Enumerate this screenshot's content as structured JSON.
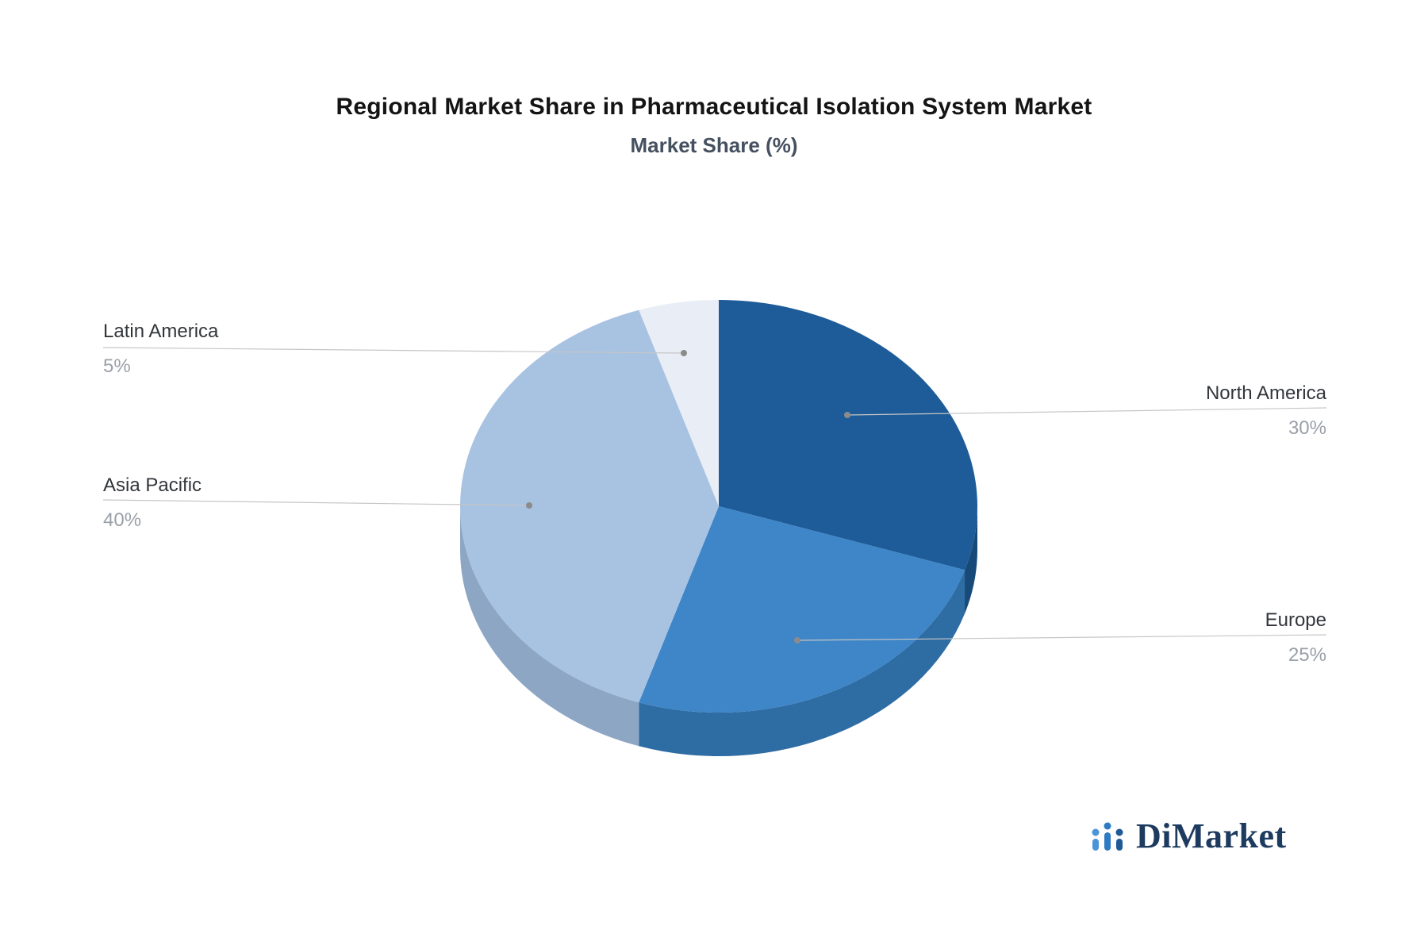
{
  "chart_data": {
    "type": "pie",
    "title": "Regional Market Share in Pharmaceutical Isolation System Market",
    "subtitle": "Market Share (%)",
    "unit": "%",
    "slices": [
      {
        "label": "North America",
        "value": 30,
        "value_label": "30%",
        "color": "#1E5C99",
        "side_color": "#174A78"
      },
      {
        "label": "Europe",
        "value": 25,
        "value_label": "25%",
        "color": "#3E86C8",
        "side_color": "#2E6CA4"
      },
      {
        "label": "Asia Pacific",
        "value": 40,
        "value_label": "40%",
        "color": "#A8C2E1",
        "side_color": "#8CA6C4"
      },
      {
        "label": "Latin America",
        "value": 5,
        "value_label": "5%",
        "color": "#E8EDF6",
        "side_color": "#C6CFDF"
      }
    ],
    "layout": {
      "effect": "3d-pie",
      "start_angle_deg": 0,
      "clockwise": true,
      "legend": "none",
      "labels": "callout-lines",
      "leader_line_color": "#C6C6C6",
      "leader_dot_color": "#8B8B8B"
    }
  },
  "branding": {
    "logo_text": "DiMarket",
    "logo_color": "#1D3A5F",
    "icon_colors": [
      "#4B94D8",
      "#2F7BC3",
      "#1D5A96"
    ]
  }
}
